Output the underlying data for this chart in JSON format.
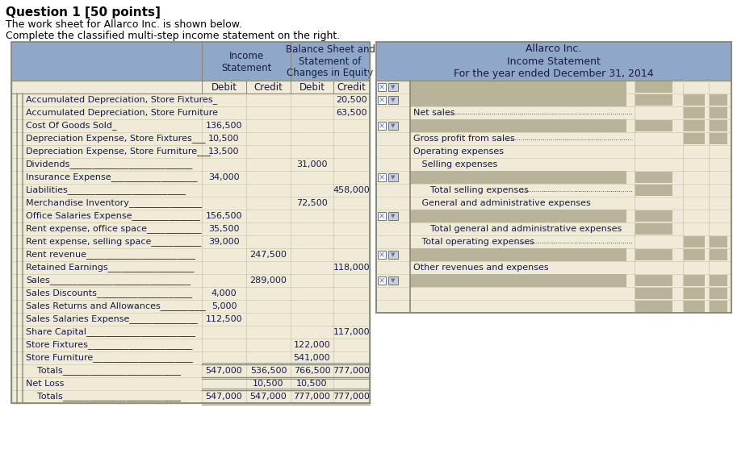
{
  "title_text": "Question 1 [50 points]",
  "subtitle1": "The work sheet for Allarco Inc. is shown below.",
  "subtitle2": "Complete the classified multi-step income statement on the right.",
  "left_table": {
    "rows": [
      [
        "Accumulated Depreciation, Store Fixtures_",
        "",
        "",
        "",
        "20,500"
      ],
      [
        "Accumulated Depreciation, Store Furniture",
        "",
        "",
        "",
        "63,500"
      ],
      [
        "Cost Of Goods Sold_",
        "136,500",
        "",
        "",
        ""
      ],
      [
        "Depreciation Expense, Store Fixtures___",
        "10,500",
        "",
        "",
        ""
      ],
      [
        "Depreciation Expense, Store Furniture___",
        "13,500",
        "",
        "",
        ""
      ],
      [
        "Dividends___________________________",
        "",
        "",
        "31,000",
        ""
      ],
      [
        "Insurance Expense___________________",
        "34,000",
        "",
        "",
        ""
      ],
      [
        "Liabilities__________________________",
        "",
        "",
        "",
        "458,000"
      ],
      [
        "Merchandise Inventory________________",
        "",
        "",
        "72,500",
        ""
      ],
      [
        "Office Salaries Expense_______________",
        "156,500",
        "",
        "",
        ""
      ],
      [
        "Rent expense, office space____________",
        "35,500",
        "",
        "",
        ""
      ],
      [
        "Rent expense, selling space___________",
        "39,000",
        "",
        "",
        ""
      ],
      [
        "Rent revenue________________________",
        "",
        "247,500",
        "",
        ""
      ],
      [
        "Retained Earnings___________________",
        "",
        "",
        "",
        "118,000"
      ],
      [
        "Sales_______________________________",
        "",
        "289,000",
        "",
        ""
      ],
      [
        "Sales Discounts_____________________",
        "4,000",
        "",
        "",
        ""
      ],
      [
        "Sales Returns and Allowances__________",
        "5,000",
        "",
        "",
        ""
      ],
      [
        "Sales Salaries Expense_______________",
        "112,500",
        "",
        "",
        ""
      ],
      [
        "Share Capital________________________",
        "",
        "",
        "",
        "117,000"
      ],
      [
        "Store Fixtures_______________________",
        "",
        "",
        "122,000",
        ""
      ],
      [
        "Store Furniture______________________",
        "",
        "",
        "541,000",
        ""
      ],
      [
        "    Totals__________________________",
        "547,000",
        "536,500",
        "766,500",
        "777,000"
      ],
      [
        "Net Loss",
        "",
        "10,500",
        "10,500",
        ""
      ],
      [
        "    Totals__________________________",
        "547,000",
        "547,000",
        "777,000",
        "777,000"
      ]
    ]
  },
  "right_table": {
    "header": [
      "Allarco Inc.",
      "Income Statement",
      "For the year ended December 31, 2014"
    ],
    "rows": [
      {
        "label": "",
        "has_x": true,
        "col1": true,
        "col2": false
      },
      {
        "label": "",
        "has_x": true,
        "col1": true,
        "col2": true
      },
      {
        "label": "Net sales",
        "has_x": false,
        "col1": false,
        "col2": true,
        "dotted": true
      },
      {
        "label": "",
        "has_x": true,
        "col1": true,
        "col2": true
      },
      {
        "label": "Gross profit from sales",
        "has_x": false,
        "col1": false,
        "col2": true,
        "dotted": true
      },
      {
        "label": "Operating expenses",
        "has_x": false,
        "col1": false,
        "col2": false
      },
      {
        "label": "   Selling expenses",
        "has_x": false,
        "col1": false,
        "col2": false
      },
      {
        "label": "",
        "has_x": true,
        "col1": true,
        "col2": false
      },
      {
        "label": "      Total selling expenses",
        "has_x": false,
        "col1": true,
        "col2": false,
        "dotted": true
      },
      {
        "label": "   General and administrative expenses",
        "has_x": false,
        "col1": false,
        "col2": false
      },
      {
        "label": "",
        "has_x": true,
        "col1": true,
        "col2": false
      },
      {
        "label": "      Total general and administrative expenses",
        "has_x": false,
        "col1": true,
        "col2": false
      },
      {
        "label": "   Total operating expenses",
        "has_x": false,
        "col1": false,
        "col2": true,
        "dotted": true
      },
      {
        "label": "",
        "has_x": true,
        "col1": true,
        "col2": true
      },
      {
        "label": "Other revenues and expenses",
        "has_x": false,
        "col1": false,
        "col2": false
      },
      {
        "label": "",
        "has_x": true,
        "col1": true,
        "col2": true
      },
      {
        "label": "",
        "has_x": false,
        "col1": true,
        "col2": true
      },
      {
        "label": "",
        "has_x": false,
        "col1": true,
        "col2": true
      }
    ]
  },
  "colors": {
    "header_bg": "#8fa8c8",
    "table_bg": "#f0ead8",
    "border": "#888877",
    "cell_gray": "#b8b49a",
    "text_dark": "#1a1a4a",
    "row_line": "#ccc4a8",
    "btn_bg": "#c8d0e0",
    "btn_border": "#6070a0"
  }
}
